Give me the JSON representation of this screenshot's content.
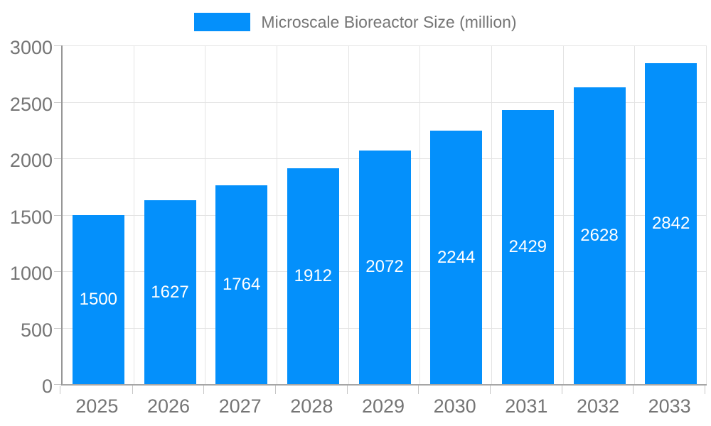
{
  "chart_data": {
    "type": "bar",
    "title": "Microscale Bioreactor Size (million)",
    "legend": {
      "position": "top",
      "entries": [
        "Microscale Bioreactor Size (million)"
      ]
    },
    "categories": [
      "2025",
      "2026",
      "2027",
      "2028",
      "2029",
      "2030",
      "2031",
      "2032",
      "2033"
    ],
    "series": [
      {
        "name": "Microscale Bioreactor Size (million)",
        "values": [
          1500,
          1627,
          1764,
          1912,
          2072,
          2244,
          2429,
          2628,
          2842
        ]
      }
    ],
    "xlabel": "",
    "ylabel": "",
    "ylim": [
      0,
      3000
    ],
    "yticks": [
      0,
      500,
      1000,
      1500,
      2000,
      2500,
      3000
    ],
    "grid": true,
    "value_labels": "inside-center",
    "colors": {
      "bar": "#0490fb",
      "value_label": "#ffffff",
      "axis_text": "#757575",
      "gridline": "#e3e3e3",
      "axis_line": "#9e9e9e",
      "tick_mark": "#c6c6c6"
    }
  }
}
